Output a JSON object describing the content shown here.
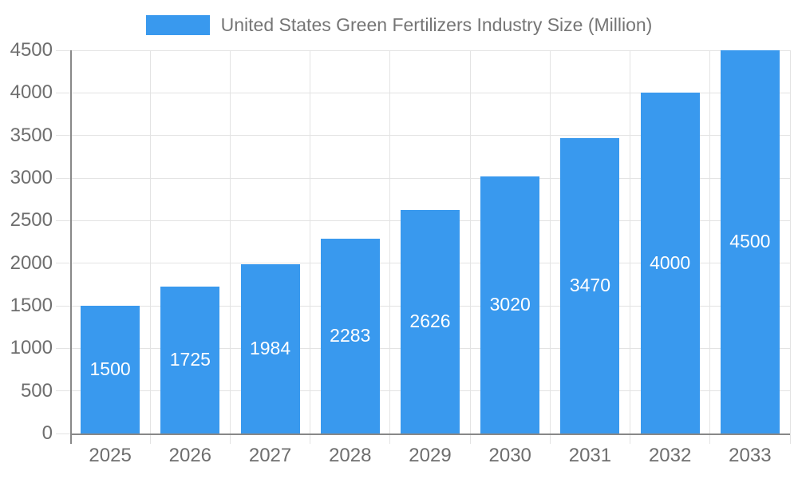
{
  "chart_data": {
    "type": "bar",
    "title": "United States Green Fertilizers Industry Size (Million)",
    "legend": {
      "label": "United States Green Fertilizers Industry Size (Million)",
      "position": "top"
    },
    "categories": [
      "2025",
      "2026",
      "2027",
      "2028",
      "2029",
      "2030",
      "2031",
      "2032",
      "2033"
    ],
    "values": [
      1500,
      1725,
      1984,
      2283,
      2626,
      3020,
      3470,
      4000,
      4500
    ],
    "bar_value_labels": [
      "1500",
      "1725",
      "1984",
      "2283",
      "2626",
      "3020",
      "3470",
      "4000",
      "4500"
    ],
    "xlabel": "",
    "ylabel": "",
    "ylim": [
      0,
      4500
    ],
    "ytick_step": 500,
    "yticks": [
      "0",
      "500",
      "1000",
      "1500",
      "2000",
      "2500",
      "3000",
      "3500",
      "4000",
      "4500"
    ],
    "grid": true,
    "bar_labels_inside": true
  },
  "colors": {
    "bar": "#3999ee",
    "bar_label": "#ffffff",
    "grid": "#e3e3e3",
    "axis": "#888888",
    "tick_text": "#6e6e6e",
    "legend_text": "#757575",
    "background": "#ffffff"
  }
}
